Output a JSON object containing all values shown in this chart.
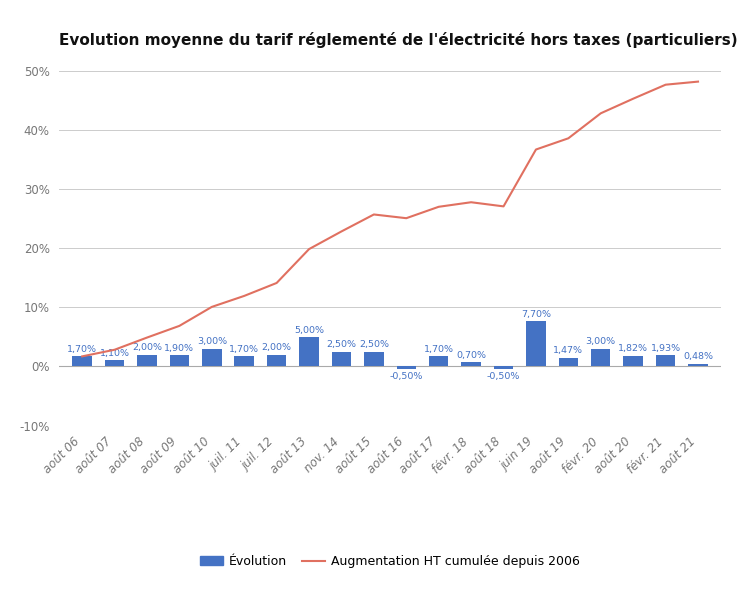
{
  "title": "Evolution moyenne du tarif réglementé de l'électricité hors taxes (particuliers)",
  "categories": [
    "août 06",
    "août 07",
    "août 08",
    "août 09",
    "août 10",
    "juil. 11",
    "juil. 12",
    "août 13",
    "nov. 14",
    "août 15",
    "août 16",
    "août 17",
    "févr. 18",
    "août 18",
    "juin 19",
    "août 19",
    "févr. 20",
    "août 20",
    "févr. 21",
    "août 21"
  ],
  "bar_values": [
    1.7,
    1.1,
    2.0,
    1.9,
    3.0,
    1.7,
    2.0,
    5.0,
    2.5,
    2.5,
    -0.5,
    1.7,
    0.7,
    -0.5,
    7.7,
    1.47,
    3.0,
    1.82,
    1.93,
    0.48
  ],
  "bar_labels": [
    "1,70%",
    "1,10%",
    "2,00%",
    "1,90%",
    "3,00%",
    "1,70%",
    "2,00%",
    "5,00%",
    "2,50%",
    "2,50%",
    "-0,50%",
    "1,70%",
    "0,70%",
    "-0,50%",
    "7,70%",
    "1,47%",
    "3,00%",
    "1,82%",
    "1,93%",
    "0,48%"
  ],
  "cumulative_values": [
    1.7,
    2.82,
    4.88,
    6.86,
    10.07,
    11.93,
    14.12,
    19.85,
    22.84,
    25.71,
    25.08,
    27.01,
    27.78,
    27.08,
    36.7,
    38.6,
    42.83,
    45.3,
    47.67,
    48.19
  ],
  "bar_color": "#4472c4",
  "line_color": "#e07060",
  "ylim_min": -10,
  "ylim_max": 52,
  "ylabel_ticks": [
    -10,
    0,
    10,
    20,
    30,
    40,
    50
  ],
  "ylabel_tick_labels": [
    "-10%",
    "0%",
    "10%",
    "20%",
    "30%",
    "40%",
    "50%"
  ],
  "legend_bar": "Évolution",
  "legend_line": "Augmentation HT cumulée depuis 2006",
  "background_color": "#ffffff",
  "grid_color": "#cccccc",
  "title_fontsize": 11,
  "label_fontsize": 6.8,
  "tick_fontsize": 8.5,
  "legend_fontsize": 9
}
